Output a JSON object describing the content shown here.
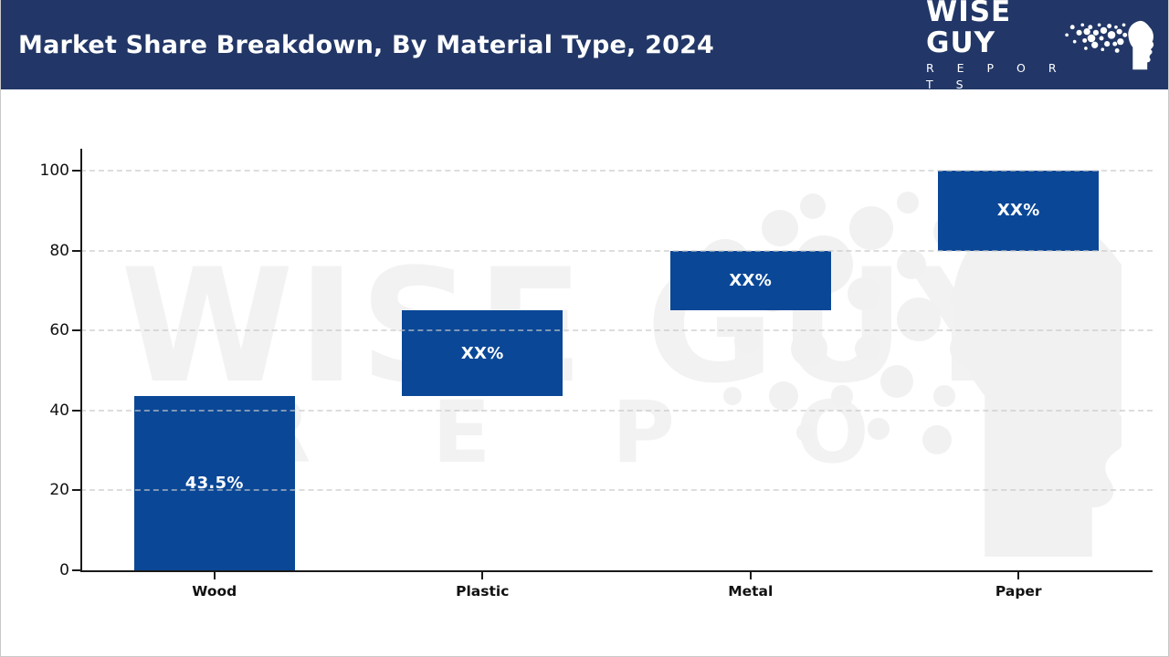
{
  "header": {
    "title": "Market Share Breakdown, By Material Type, 2024",
    "logo": {
      "primary": "WISE GUY",
      "secondary": "R E P O R T S"
    }
  },
  "watermark": {
    "primary": "WISE GUY",
    "secondary": "R E P O R T S"
  },
  "chart_data": {
    "type": "bar",
    "subtype": "waterfall",
    "title": "Market Share Breakdown, By Material Type, 2024",
    "categories": [
      "Wood",
      "Plastic",
      "Metal",
      "Paper"
    ],
    "segments": [
      {
        "category": "Wood",
        "start": 0,
        "end": 43.5,
        "label": "43.5%"
      },
      {
        "category": "Plastic",
        "start": 43.5,
        "end": 65,
        "label": "XX%"
      },
      {
        "category": "Metal",
        "start": 65,
        "end": 80,
        "label": "XX%"
      },
      {
        "category": "Paper",
        "start": 80,
        "end": 100,
        "label": "XX%"
      }
    ],
    "ylim": [
      0,
      100
    ],
    "yticks": [
      0,
      20,
      40,
      60,
      80,
      100
    ],
    "xlabel": "",
    "ylabel": "",
    "legend": "none",
    "grid": "horizontal-dashed",
    "bar_color": "#0a4797",
    "bar_label_color": "#ffffff",
    "header_color": "#223767",
    "gridline_color": "#d9d9d9",
    "axis_color": "#1a1a1a"
  }
}
